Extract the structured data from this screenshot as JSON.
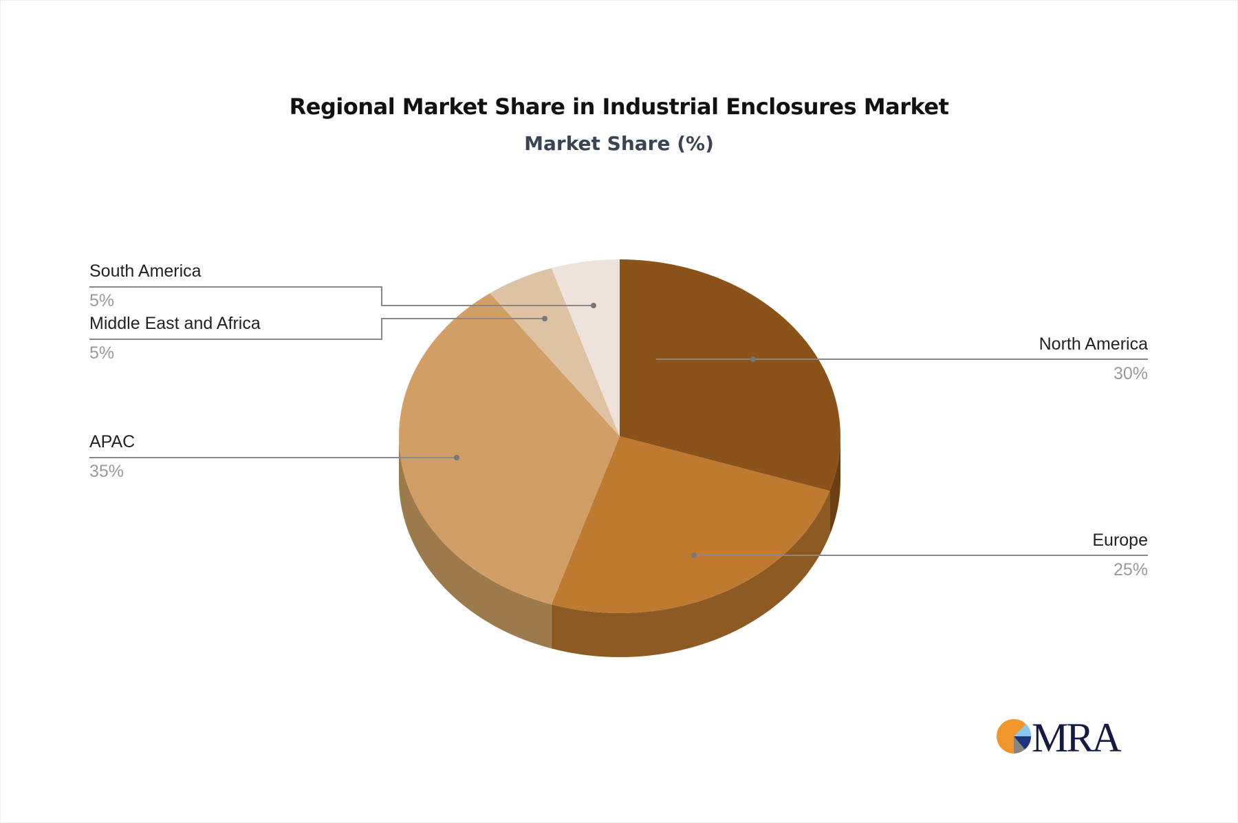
{
  "chart_data": {
    "type": "pie",
    "style": "3d",
    "title": "Regional Market Share in Industrial Enclosures Market",
    "subtitle": "Market Share (%)",
    "categories": [
      "North America",
      "Europe",
      "APAC",
      "Middle East and Africa",
      "South America"
    ],
    "values": [
      30,
      25,
      35,
      5,
      5
    ],
    "labels": [
      "30%",
      "25%",
      "35%",
      "5%",
      "5%"
    ],
    "colors": [
      "#8B5319",
      "#C07A30",
      "#D19F66",
      "#DDC2A3",
      "#EDE3DB"
    ],
    "side_colors": [
      "#6B3F12",
      "#8E5A24",
      "#9C7A4C",
      "#A8927A",
      "#B5AAA2"
    ],
    "legend": "none"
  },
  "logo": {
    "text": "MRA"
  }
}
